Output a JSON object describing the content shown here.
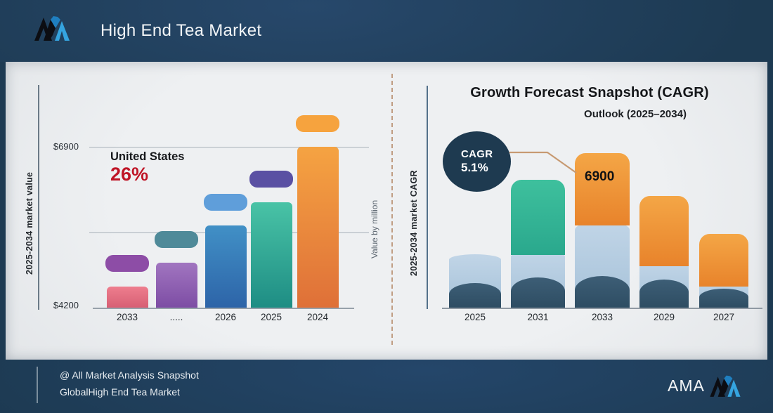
{
  "header": {
    "title": "High End Tea Market",
    "brand": "AMA",
    "bg_color": "#1d3a52"
  },
  "left_chart": {
    "region_label": "United States",
    "highlight_value": "26%",
    "highlight_color": "#bf1526",
    "y_axis_label": "2025-2034 market value",
    "right_axis_label": "Value by million",
    "tick_top": "$6900",
    "tick_bottom": "$4200"
  },
  "right_chart": {
    "title": "Growth Forecast Snapshot (CAGR)",
    "subtitle": "Outlook (2025–2034)",
    "y_axis_label": "2025-2034 market CAGR",
    "badge_line1": "CAGR",
    "badge_line2": "5.1%",
    "badge_color": "#1e3a50",
    "value_callout": "6900"
  },
  "footer": {
    "line1": "@ All Market Analysis Snapshot",
    "line2": "GlobalHigh End Tea Market",
    "brand": "AMA"
  },
  "chart_data": [
    {
      "type": "bar",
      "title": "United States",
      "annotation": "26%",
      "categories": [
        "2033",
        ".....",
        "2026",
        "2025",
        "2024"
      ],
      "values": [
        4550,
        4950,
        5580,
        5970,
        6900
      ],
      "ylabel": "2025-2034 market value",
      "ylabel_right": "Value by million",
      "yticks": [
        4200,
        6900
      ],
      "ytick_labels": [
        "$4200",
        "$6900"
      ],
      "ylim": [
        4200,
        6900
      ],
      "gridline_values": [
        6900,
        5460
      ],
      "legend": "none",
      "bar_gradients": [
        [
          "#ee7e8e",
          "#d75f74"
        ],
        [
          "#a175c0",
          "#7d4da4"
        ],
        [
          "#4190c6",
          "#2d64a8"
        ],
        [
          "#49c3a6",
          "#1e8d84"
        ],
        [
          "#f5a342",
          "#df7038"
        ]
      ],
      "cap_colors": [
        "#8d4da6",
        "#4f8a99",
        "#5f9eda",
        "#5a50a3",
        "#f6a33e"
      ]
    },
    {
      "type": "bar",
      "subtype": "stacked",
      "title": "Growth Forecast Snapshot (CAGR)",
      "subtitle": "Outlook (2025–2034)",
      "categories": [
        "2025",
        "2031",
        "2033",
        "2029",
        "2027"
      ],
      "series": [
        {
          "name": "base",
          "values": [
            1100,
            1350,
            1400,
            1260,
            850
          ]
        },
        {
          "name": "mid",
          "values": [
            1290,
            1190,
            2450,
            790,
            280
          ]
        },
        {
          "name": "top",
          "values": [
            0,
            3170,
            3050,
            2950,
            2170
          ]
        }
      ],
      "totals": [
        2390,
        5710,
        6900,
        5000,
        3300
      ],
      "ylabel": "2025-2034 market CAGR",
      "ylim": [
        0,
        6900
      ],
      "annotation": {
        "badge": "CAGR 5.1%",
        "labeled_category": "2033",
        "label": "6900"
      },
      "legend": "none",
      "base_gradient": [
        "#3d5e76",
        "#2e4d63"
      ],
      "mid_gradient": [
        "#c1d5e7",
        "#a6c2d9"
      ],
      "top_gradients": [
        null,
        [
          "#3ec09d",
          "#2aa88d"
        ],
        [
          "#f4a646",
          "#e8832b"
        ],
        [
          "#f4a646",
          "#e8832b"
        ],
        [
          "#f4a646",
          "#e8832b"
        ]
      ]
    }
  ]
}
